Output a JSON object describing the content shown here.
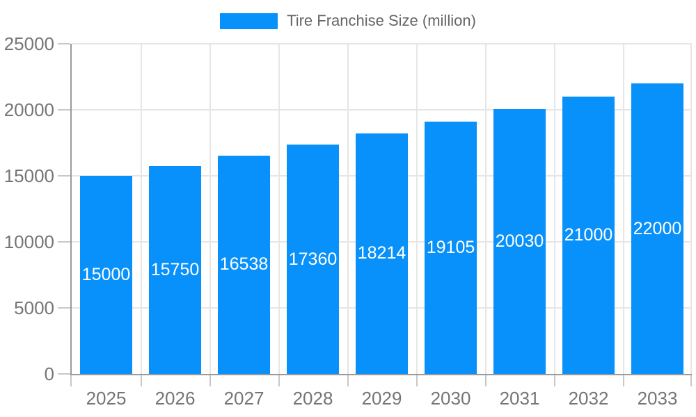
{
  "chart_data": {
    "type": "bar",
    "title": "Tire Franchise Size (million)",
    "categories": [
      "2025",
      "2026",
      "2027",
      "2028",
      "2029",
      "2030",
      "2031",
      "2032",
      "2033"
    ],
    "values": [
      15000,
      15750,
      16538,
      17360,
      18214,
      19105,
      20030,
      21000,
      22000
    ],
    "xlabel": "",
    "ylabel": "",
    "ylim": [
      0,
      25000
    ],
    "yticks": [
      0,
      5000,
      10000,
      15000,
      20000,
      25000
    ],
    "legend_position": "top",
    "grid": true,
    "value_labels": "inside-center",
    "colors": {
      "bar": "#0891FA",
      "grid": "#E6E6E6",
      "axis": "#9A9A9A",
      "tick": "#C8C8C8",
      "axis_text": "#757575",
      "legend_text": "#666666",
      "value_text": "#FFFFFF",
      "background": "#FFFFFF"
    }
  }
}
